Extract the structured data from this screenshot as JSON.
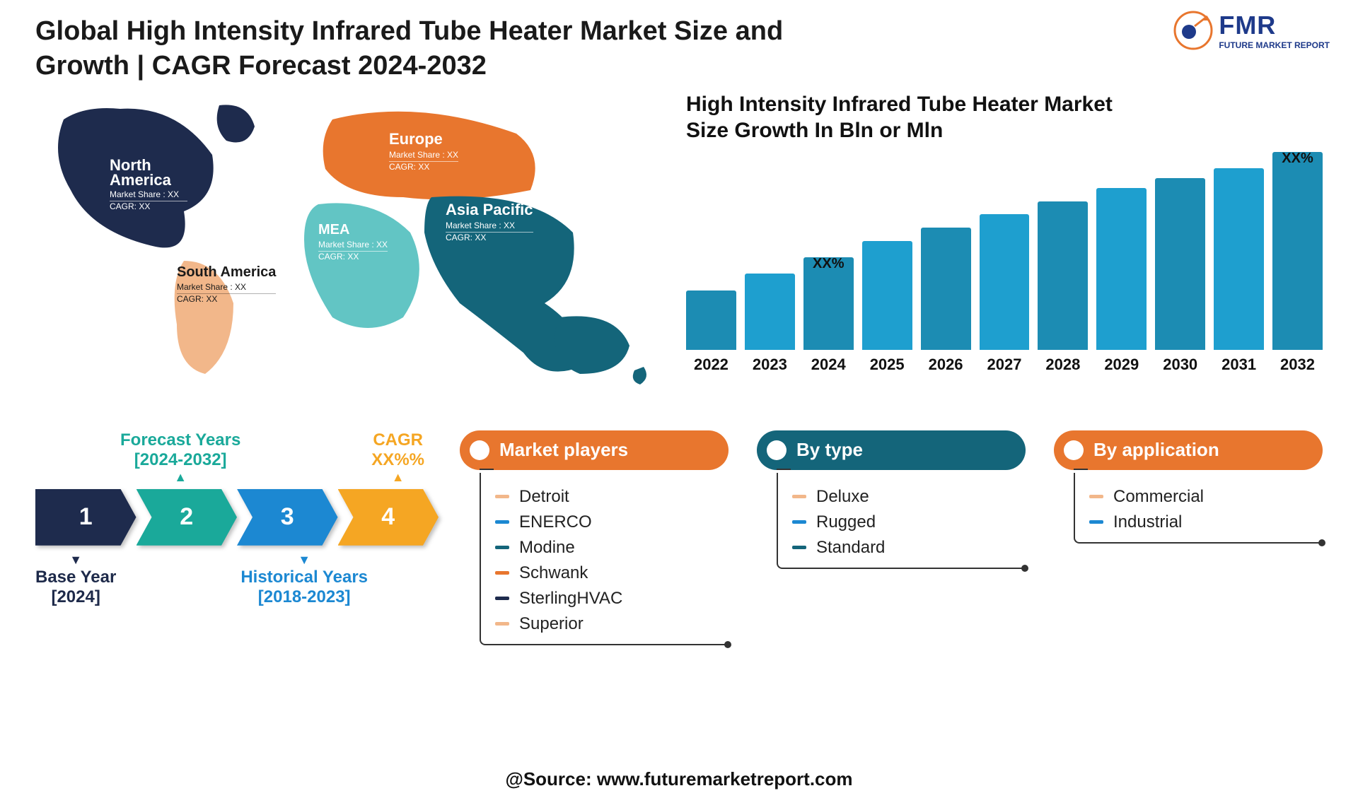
{
  "title": "Global High Intensity Infrared Tube Heater Market Size and Growth | CAGR Forecast 2024-2032",
  "logo": {
    "main": "FMR",
    "sub": "FUTURE MARKET REPORT"
  },
  "regions": {
    "na": {
      "name": "North America",
      "share": "Market Share : XX",
      "cagr": "CAGR: XX",
      "color": "#1e2b4d"
    },
    "sa": {
      "name": "South America",
      "share": "Market Share : XX",
      "cagr": "CAGR: XX",
      "color": "#f2b78a"
    },
    "eu": {
      "name": "Europe",
      "share": "Market Share : XX",
      "cagr": "CAGR: XX",
      "color": "#e8762e"
    },
    "mea": {
      "name": "MEA",
      "share": "Market Share : XX",
      "cagr": "CAGR: XX",
      "color": "#62c5c4"
    },
    "ap": {
      "name": "Asia Pacific",
      "share": "Market Share : XX",
      "cagr": "CAGR: XX",
      "color": "#14657a"
    }
  },
  "chart": {
    "title": "High Intensity Infrared Tube Heater Market Size Growth In Bln or Mln",
    "years": [
      "2022",
      "2023",
      "2024",
      "2025",
      "2026",
      "2027",
      "2028",
      "2029",
      "2030",
      "2031",
      "2032"
    ],
    "values": [
      90,
      115,
      140,
      165,
      185,
      205,
      225,
      245,
      260,
      275,
      300
    ],
    "max": 300,
    "color": "#1c8cb3",
    "color_alt": "#1e9fcf",
    "annot_first": "XX%",
    "annot_last": "XX%"
  },
  "timeline": {
    "forecast_label": "Forecast Years",
    "forecast_range": "[2024-2032]",
    "cagr_label": "CAGR",
    "cagr_value": "XX%%",
    "base_label": "Base Year",
    "base_range": "[2024]",
    "hist_label": "Historical Years",
    "hist_range": "[2018-2023]",
    "segs": [
      {
        "n": "1",
        "color": "#1e2b4d"
      },
      {
        "n": "2",
        "color": "#1aa99a"
      },
      {
        "n": "3",
        "color": "#1c88d2"
      },
      {
        "n": "4",
        "color": "#f5a623"
      }
    ]
  },
  "cats": [
    {
      "title": "Market players",
      "header_color": "#e8762e",
      "items": [
        {
          "label": "Detroit",
          "tick": "#f2b78a"
        },
        {
          "label": "ENERCO",
          "tick": "#1c88d2"
        },
        {
          "label": "Modine",
          "tick": "#14657a"
        },
        {
          "label": "Schwank",
          "tick": "#e8762e"
        },
        {
          "label": "SterlingHVAC",
          "tick": "#1e2b4d"
        },
        {
          "label": "Superior",
          "tick": "#f2b78a"
        }
      ]
    },
    {
      "title": "By type",
      "header_color": "#14657a",
      "items": [
        {
          "label": "Deluxe",
          "tick": "#f2b78a"
        },
        {
          "label": "Rugged",
          "tick": "#1c88d2"
        },
        {
          "label": "Standard",
          "tick": "#14657a"
        }
      ]
    },
    {
      "title": "By application",
      "header_color": "#e8762e",
      "items": [
        {
          "label": "Commercial",
          "tick": "#f2b78a"
        },
        {
          "label": "Industrial",
          "tick": "#1c88d2"
        }
      ]
    }
  ],
  "source": "@Source: www.futuremarketreport.com"
}
